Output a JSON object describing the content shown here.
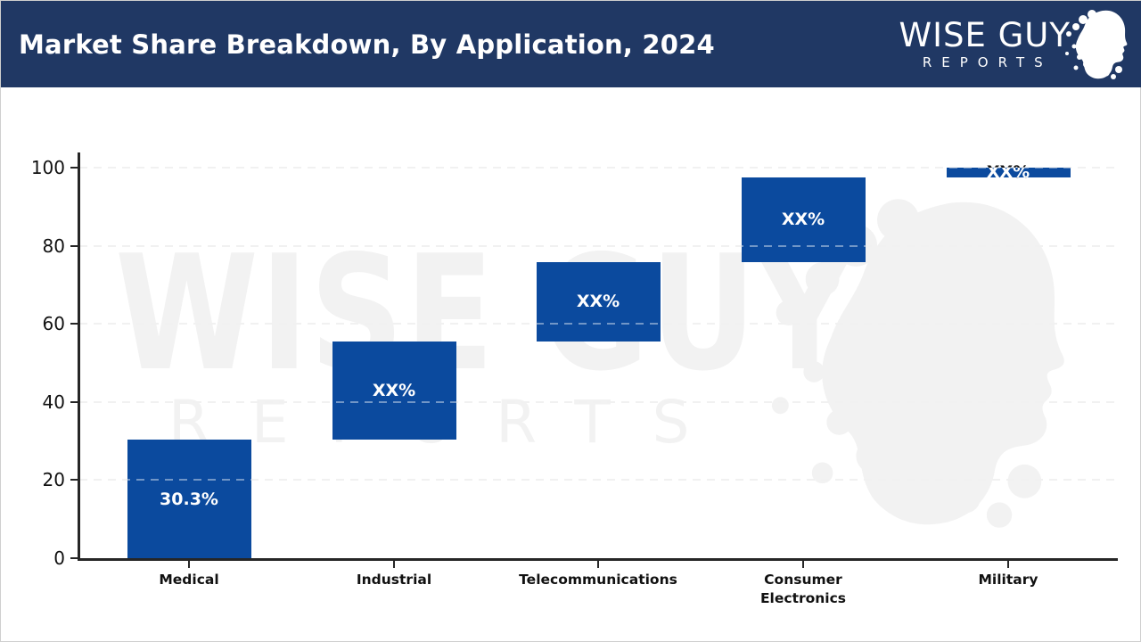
{
  "header": {
    "title": "Market Share Breakdown, By Application, 2024",
    "logo": {
      "line1": "WISE GUY",
      "line2": "REPORTS"
    }
  },
  "watermark": {
    "line1": "WISE GUY",
    "line2": "REPORTS"
  },
  "chart_data": {
    "type": "bar",
    "variant": "waterfall",
    "title": "Market Share Breakdown, By Application, 2024",
    "categories": [
      "Medical",
      "Industrial",
      "Telecommunications",
      "Consumer Electronics",
      "Military"
    ],
    "segments": [
      {
        "category": "Medical",
        "start": 0,
        "end": 30.3,
        "label": "30.3%"
      },
      {
        "category": "Industrial",
        "start": 30.3,
        "end": 55.5,
        "label": "XX%"
      },
      {
        "category": "Telecommunications",
        "start": 55.5,
        "end": 75.9,
        "label": "XX%"
      },
      {
        "category": "Consumer Electronics",
        "start": 75.9,
        "end": 97.5,
        "label": "XX%"
      },
      {
        "category": "Military",
        "start": 97.5,
        "end": 100,
        "label": "XX%"
      }
    ],
    "xlabel": "",
    "ylabel": "",
    "ylim": [
      0,
      100
    ],
    "yticks": [
      0,
      20,
      40,
      60,
      80,
      100
    ],
    "grid": "horizontal-dashed",
    "legend": "none",
    "bar_color": "#0b4a9e",
    "bar_label_color": "#ffffff",
    "outside_label_color": "#111111",
    "header_color": "#203864",
    "axis_color": "#262626",
    "gridline_color": "#e7e7e7"
  }
}
